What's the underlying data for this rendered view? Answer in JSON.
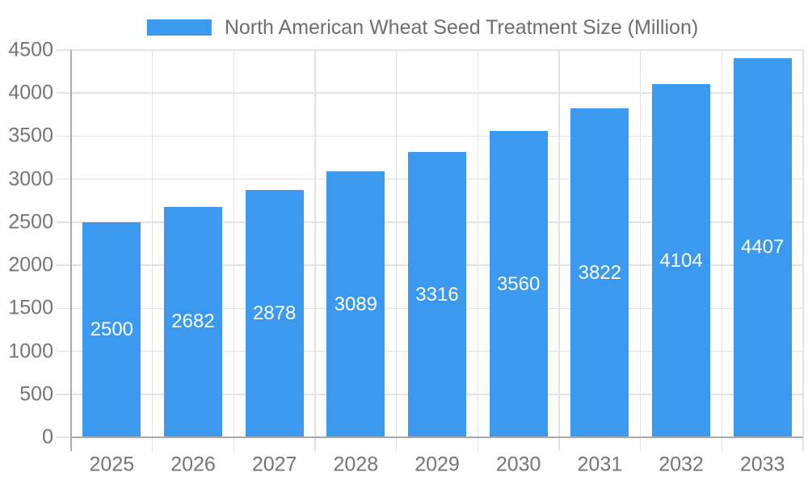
{
  "chart_data": {
    "type": "bar",
    "title": "North American Wheat Seed Treatment Size (Million)",
    "series_name": "North American Wheat Seed Treatment Size (Million)",
    "categories": [
      "2025",
      "2026",
      "2027",
      "2028",
      "2029",
      "2030",
      "2031",
      "2032",
      "2033"
    ],
    "values": [
      2500,
      2682,
      2878,
      3089,
      3316,
      3560,
      3822,
      4104,
      4407
    ],
    "xlabel": "",
    "ylabel": "",
    "ylim": [
      0,
      4500
    ],
    "ytick_step": 500,
    "yticks": [
      0,
      500,
      1000,
      1500,
      2000,
      2500,
      3000,
      3500,
      4000,
      4500
    ],
    "grid": true,
    "legend_position": "top-center",
    "bar_labels_inside": true,
    "colors": {
      "bar": "#3B99F0",
      "bar_label": "#ffffff",
      "axis_text": "#757575",
      "legend_text": "#6e6e6e",
      "grid_line": "#e3e3e3",
      "axis_line": "#aaaaaa",
      "background": "#ffffff"
    }
  }
}
